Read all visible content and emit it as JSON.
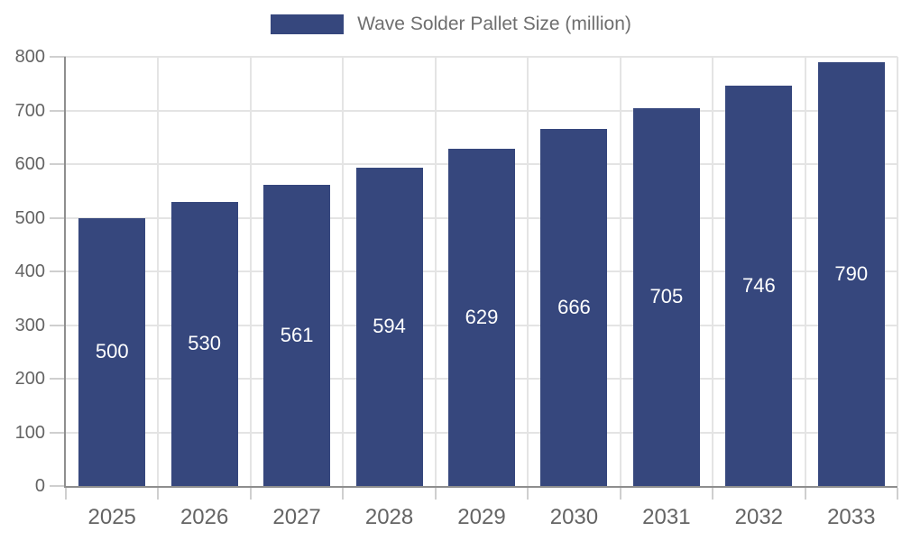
{
  "legend": {
    "label": "Wave Solder Pallet Size (million)"
  },
  "colors": {
    "bar": "#36477D",
    "axis": "#8e8e8e",
    "grid": "#e4e4e4",
    "tick": "#cfcfcf",
    "tick_label": "#646464",
    "legend_text": "#6e6e6e",
    "value_label": "#ffffff",
    "background": "#ffffff"
  },
  "chart_data": {
    "type": "bar",
    "title": "",
    "xlabel": "",
    "ylabel": "",
    "categories": [
      "2025",
      "2026",
      "2027",
      "2028",
      "2029",
      "2030",
      "2031",
      "2032",
      "2033"
    ],
    "series": [
      {
        "name": "Wave Solder Pallet Size (million)",
        "values": [
          500,
          530,
          561,
          594,
          629,
          666,
          705,
          746,
          790
        ]
      }
    ],
    "value_labels": [
      500,
      530,
      561,
      594,
      629,
      666,
      705,
      746,
      790
    ],
    "value_label_position": "inside-center",
    "ylim": [
      0,
      800
    ],
    "yticks": [
      0,
      100,
      200,
      300,
      400,
      500,
      600,
      700,
      800
    ],
    "grid": "horizontal-and-vertical",
    "legend_position": "top-center"
  }
}
